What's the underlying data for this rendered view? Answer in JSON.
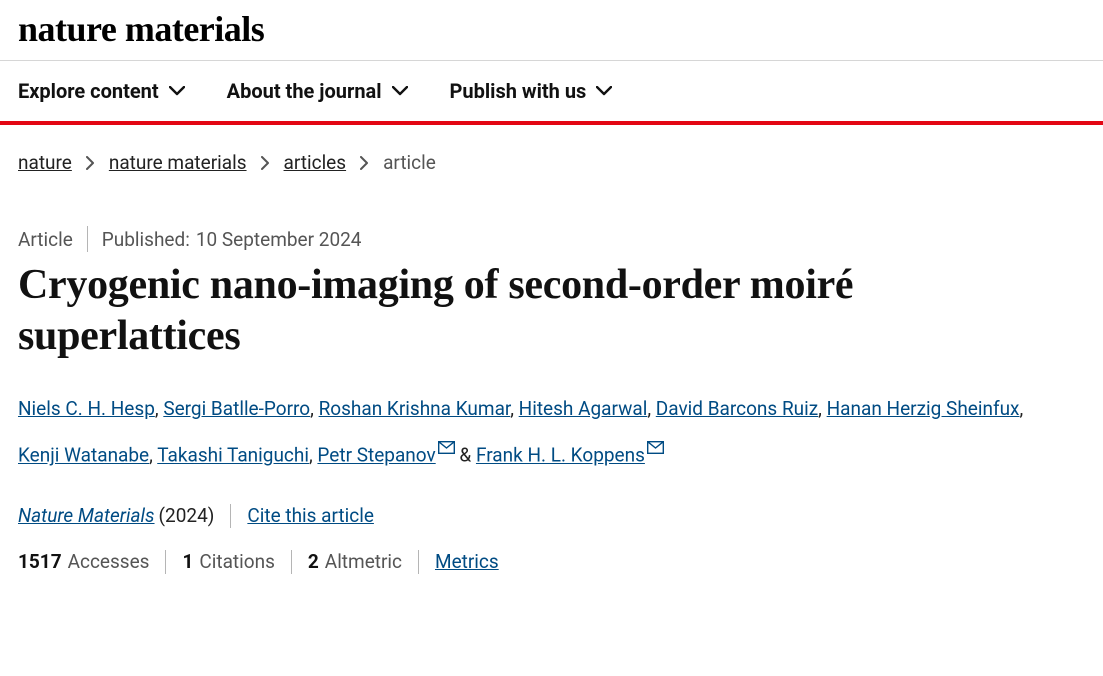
{
  "brand": "nature materials",
  "nav": [
    {
      "label": "Explore content"
    },
    {
      "label": "About the journal"
    },
    {
      "label": "Publish with us"
    }
  ],
  "breadcrumb": {
    "items": [
      {
        "label": "nature",
        "link": true
      },
      {
        "label": "nature materials",
        "link": true
      },
      {
        "label": "articles",
        "link": true
      },
      {
        "label": "article",
        "link": false
      }
    ]
  },
  "meta": {
    "type": "Article",
    "published_prefix": "Published:",
    "published_date": "10 September 2024"
  },
  "title": "Cryogenic nano-imaging of second-order moiré superlattices",
  "authors": [
    {
      "name": "Niels C. H. Hesp",
      "mail": false
    },
    {
      "name": "Sergi Batlle-Porro",
      "mail": false
    },
    {
      "name": "Roshan Krishna Kumar",
      "mail": false
    },
    {
      "name": "Hitesh Agarwal",
      "mail": false
    },
    {
      "name": "David Barcons Ruiz",
      "mail": false
    },
    {
      "name": "Hanan Herzig Sheinfux",
      "mail": false
    },
    {
      "name": "Kenji Watanabe",
      "mail": false
    },
    {
      "name": "Takashi Taniguchi",
      "mail": false
    },
    {
      "name": "Petr Stepanov",
      "mail": true
    },
    {
      "name": "Frank H. L. Koppens",
      "mail": true
    }
  ],
  "citation": {
    "journal": "Nature Materials",
    "year": "(2024)",
    "cite_label": "Cite this article"
  },
  "metrics": {
    "accesses": {
      "value": "1517",
      "label": "Accesses"
    },
    "citations": {
      "value": "1",
      "label": "Citations"
    },
    "altmetric": {
      "value": "2",
      "label": "Altmetric"
    },
    "link_label": "Metrics"
  },
  "colors": {
    "accent_red": "#e30613",
    "link_blue": "#004b83",
    "text": "#222222",
    "muted": "#555555",
    "divider": "#b5b5b5"
  }
}
